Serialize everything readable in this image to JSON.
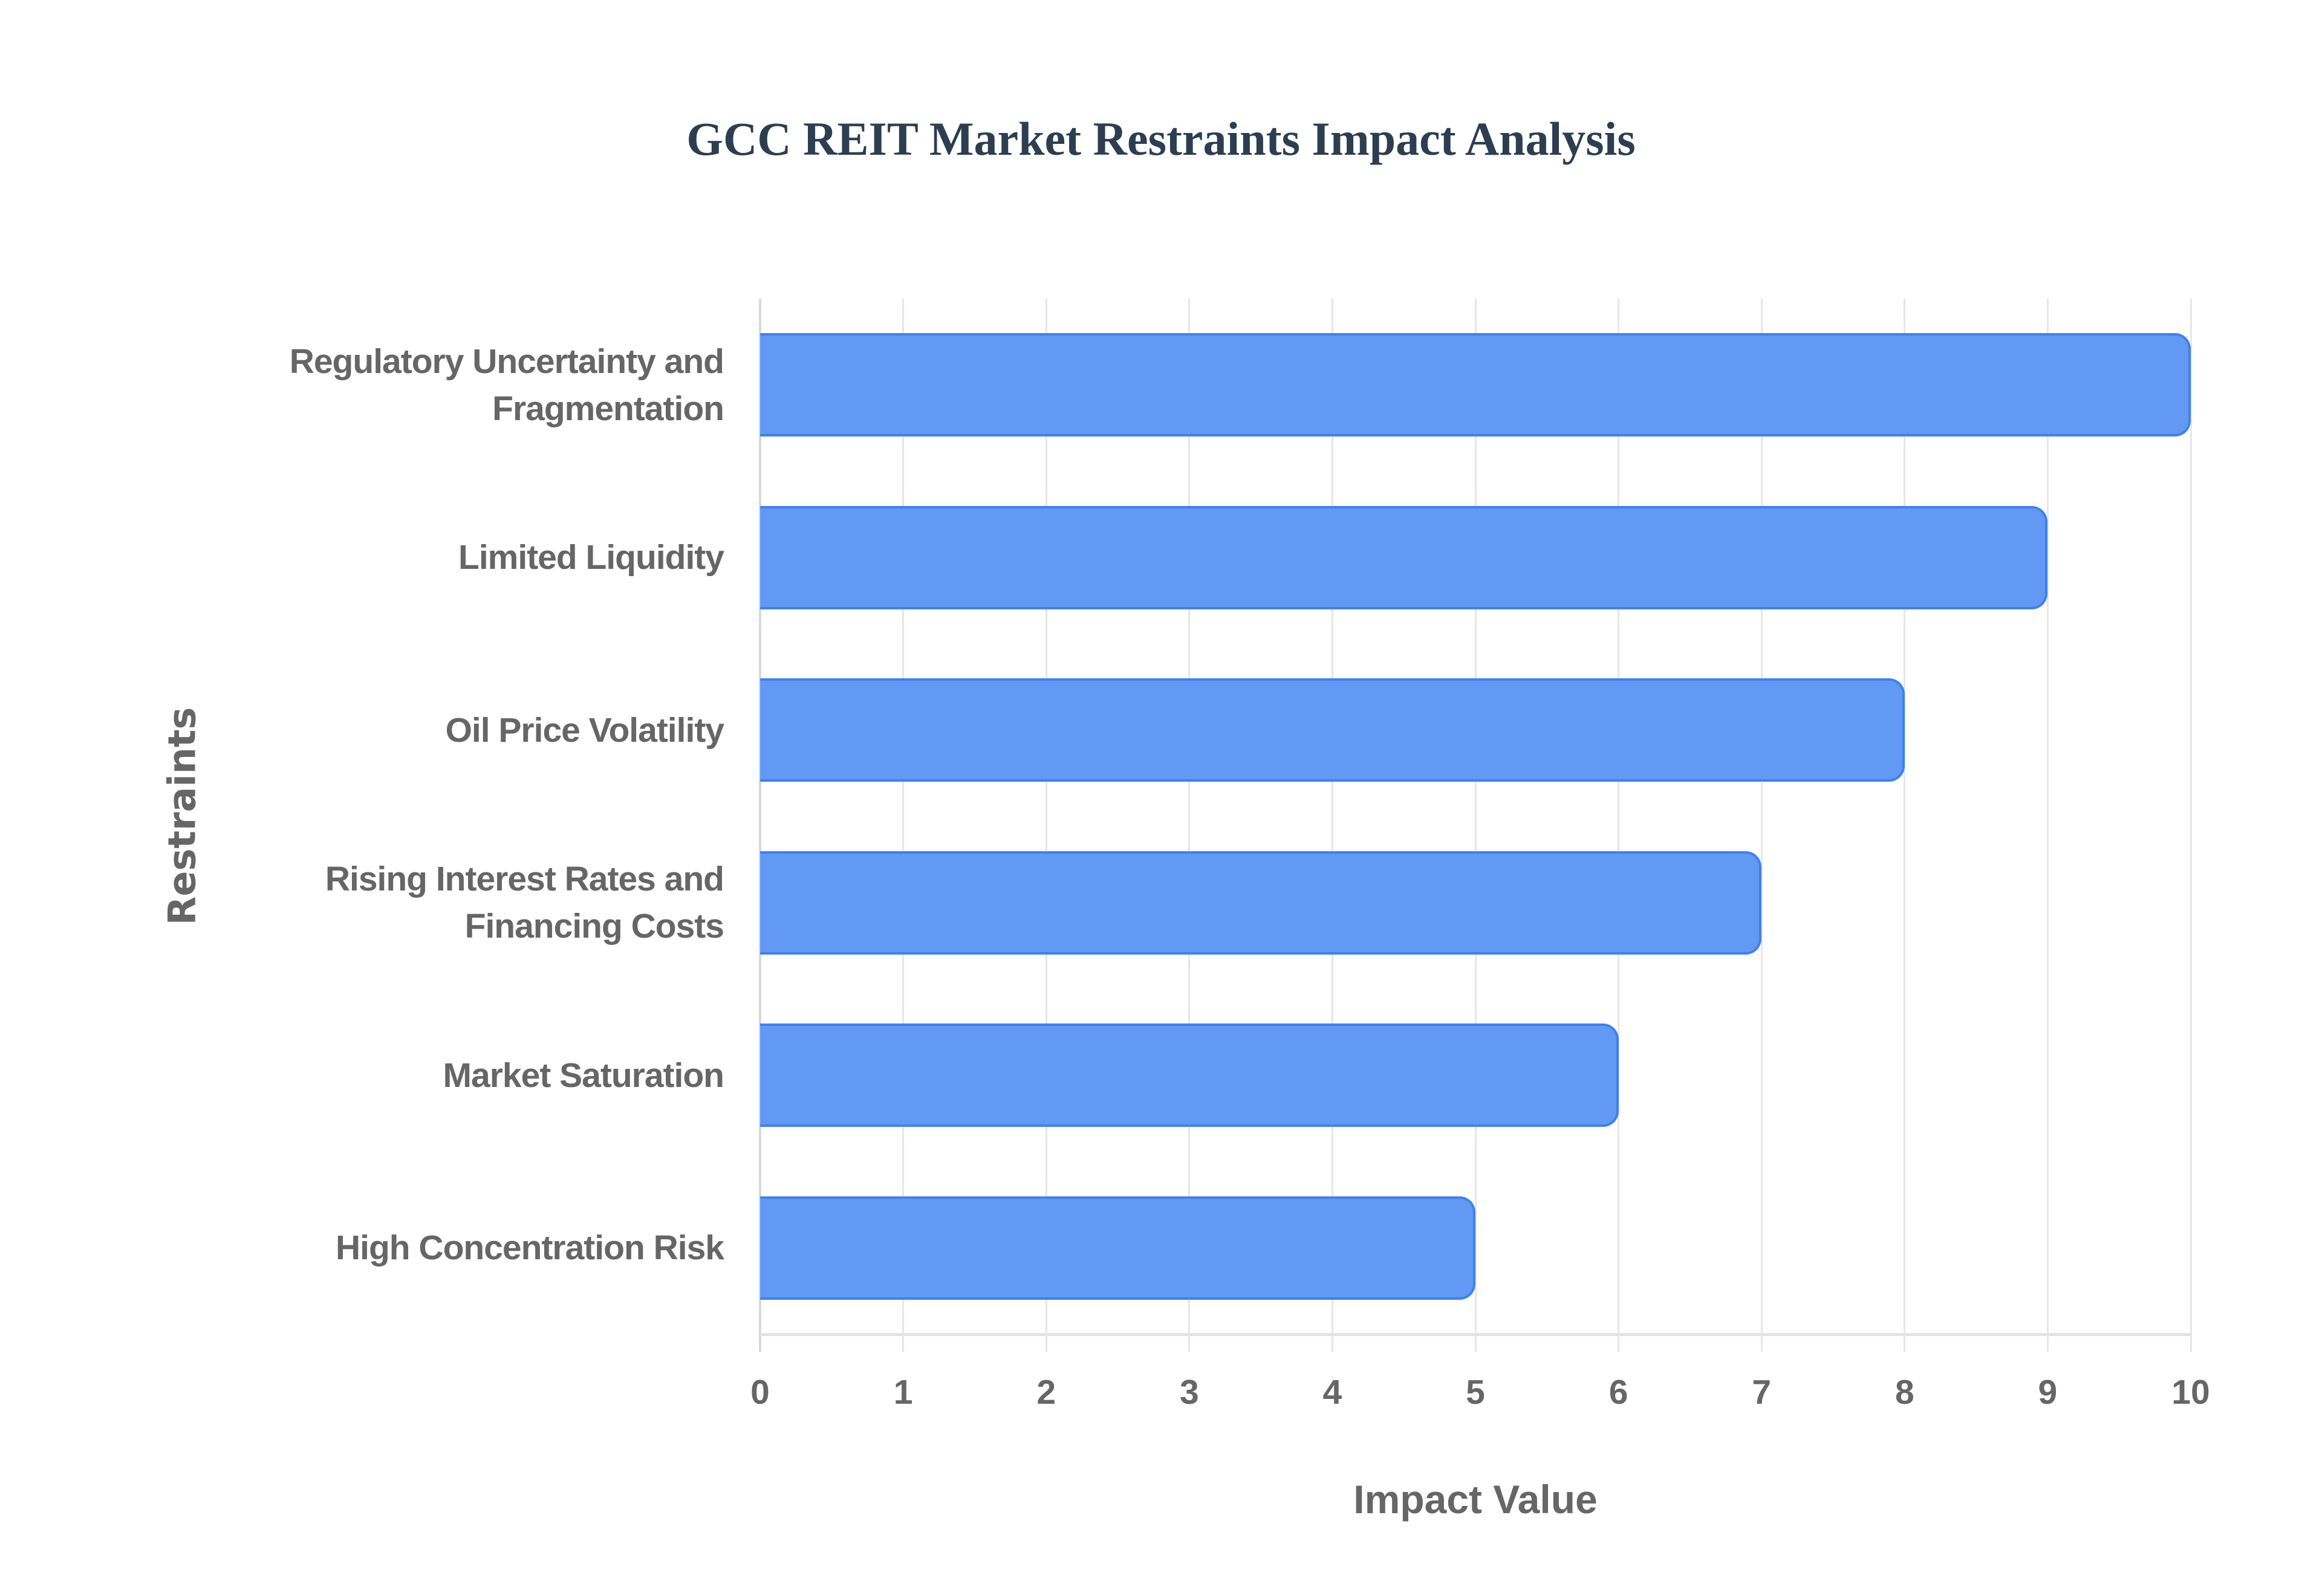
{
  "chart_data": {
    "type": "bar",
    "orientation": "horizontal",
    "title": "GCC REIT Market Restraints Impact Analysis",
    "xlabel": "Impact Value",
    "ylabel": "Restraints",
    "categories": [
      "Regulatory Uncertainty and Fragmentation",
      "Limited Liquidity",
      "Oil Price Volatility",
      "Rising Interest Rates and Financing Costs",
      "Market Saturation",
      "High Concentration Risk"
    ],
    "category_lines": [
      [
        "Regulatory Uncertainty and",
        "Fragmentation"
      ],
      [
        "Limited Liquidity"
      ],
      [
        "Oil Price Volatility"
      ],
      [
        "Rising Interest Rates and",
        "Financing Costs"
      ],
      [
        "Market Saturation"
      ],
      [
        "High Concentration Risk"
      ]
    ],
    "values": [
      10,
      9,
      8,
      7,
      6,
      5
    ],
    "xlim": [
      0,
      10
    ],
    "xticks": [
      "0",
      "1",
      "2",
      "3",
      "4",
      "5",
      "6",
      "7",
      "8",
      "9",
      "10"
    ],
    "grid": true,
    "legend": "none",
    "colors": {
      "bar_fill": "#6199f5",
      "bar_border": "#3f80ef",
      "title": "#2c3e50",
      "axis_text": "#666666"
    }
  }
}
